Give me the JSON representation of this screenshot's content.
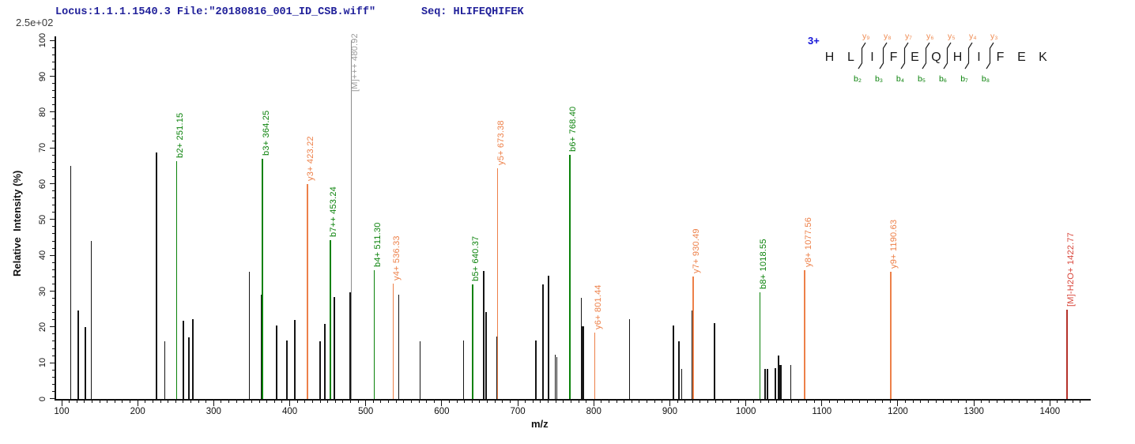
{
  "header": {
    "locus_file": "Locus:1.1.1.1540.3 File:\"20180816_001_ID_CSB.wiff\"",
    "seq_label": "Seq: HLIFEQHIFEK"
  },
  "peptide_map": {
    "charge": "3+",
    "residues": [
      "H",
      "L",
      "I",
      "F",
      "E",
      "Q",
      "H",
      "I",
      "F",
      "E",
      "K"
    ],
    "sites": [
      {
        "after_index": 1,
        "y_label": "y₉",
        "b_label": "b₂"
      },
      {
        "after_index": 2,
        "y_label": "y₈",
        "b_label": "b₃"
      },
      {
        "after_index": 3,
        "y_label": "y₇",
        "b_label": "b₄"
      },
      {
        "after_index": 4,
        "y_label": "y₆",
        "b_label": "b₅"
      },
      {
        "after_index": 5,
        "y_label": "y₅",
        "b_label": "b₆"
      },
      {
        "after_index": 6,
        "y_label": "y₄",
        "b_label": "b₇"
      },
      {
        "after_index": 7,
        "y_label": "y₃",
        "b_label": "b₈"
      }
    ]
  },
  "chart_data": {
    "type": "bar",
    "subtype": "ms2-fragment-spectrum",
    "title": "",
    "xlabel": "m/z",
    "ylabel": "Relative  Intensity (%)",
    "y_top_scale": "2.5e+02",
    "xlim": [
      100,
      1460
    ],
    "ylim": [
      0,
      100
    ],
    "x_major_tick_step": 100,
    "x_minor_tick_step": 10,
    "y_major_tick_step": 10,
    "y_minor_tick_step": 2,
    "x_major_ticks": [
      100,
      200,
      300,
      400,
      500,
      600,
      700,
      800,
      900,
      1000,
      1100,
      1200,
      1300,
      1400
    ],
    "grid": false,
    "colors": {
      "default": "#151515",
      "b": "#0a820a",
      "y": "#ED8049",
      "precursor_line": "#8c8c8c",
      "precursor_label": "#9a9a9a",
      "loss_line": "#b5322a",
      "loss_label": "#d8453a"
    },
    "peaks": [
      {
        "mz": 112,
        "i": 64.9
      },
      {
        "mz": 122,
        "i": 24.5
      },
      {
        "mz": 131.5,
        "i": 20.0
      },
      {
        "mz": 139,
        "i": 44.0
      },
      {
        "mz": 225,
        "i": 68.7
      },
      {
        "mz": 235.5,
        "i": 16.0
      },
      {
        "mz": 251.15,
        "i": 66.2,
        "ion": "b",
        "label": "b2+ 251.15"
      },
      {
        "mz": 260.4,
        "i": 21.7
      },
      {
        "mz": 267.7,
        "i": 17.2
      },
      {
        "mz": 272.9,
        "i": 22.2
      },
      {
        "mz": 347,
        "i": 35.5
      },
      {
        "mz": 363,
        "i": 29.0
      },
      {
        "mz": 364.25,
        "i": 67.0,
        "ion": "b",
        "label": "b3+ 364.25"
      },
      {
        "mz": 382.7,
        "i": 20.4
      },
      {
        "mz": 396.6,
        "i": 16.3
      },
      {
        "mz": 406.7,
        "i": 22.0
      },
      {
        "mz": 423.22,
        "i": 60.0,
        "ion": "y",
        "label": "y3+ 423.22"
      },
      {
        "mz": 440,
        "i": 16.0
      },
      {
        "mz": 446,
        "i": 20.9
      },
      {
        "mz": 453.24,
        "i": 44.3,
        "ion": "b",
        "label": "b7++ 453.24"
      },
      {
        "mz": 458.5,
        "i": 28.3
      },
      {
        "mz": 480,
        "i": 29.6,
        "w": 3
      },
      {
        "mz": 480.92,
        "i": 100,
        "ion": "M",
        "label": "[M]+++ 480.92"
      },
      {
        "mz": 511.3,
        "i": 35.8,
        "ion": "b",
        "label": "b4+ 511.30"
      },
      {
        "mz": 536.33,
        "i": 32.2,
        "ion": "y",
        "label": "y4+ 536.33"
      },
      {
        "mz": 543.5,
        "i": 29.1
      },
      {
        "mz": 571.6,
        "i": 16.1
      },
      {
        "mz": 628.8,
        "i": 16.3
      },
      {
        "mz": 640.37,
        "i": 31.8,
        "ion": "b",
        "label": "b5+ 640.37"
      },
      {
        "mz": 655.4,
        "i": 35.6
      },
      {
        "mz": 658.2,
        "i": 24.1,
        "w": 2.5
      },
      {
        "mz": 672.5,
        "i": 17.4
      },
      {
        "mz": 673.38,
        "i": 64.3,
        "ion": "y",
        "label": "y5+ 673.38"
      },
      {
        "mz": 724,
        "i": 16.3
      },
      {
        "mz": 733.4,
        "i": 31.8
      },
      {
        "mz": 740.6,
        "i": 34.2
      },
      {
        "mz": 749.5,
        "i": 12.3
      },
      {
        "mz": 751.5,
        "i": 11.5
      },
      {
        "mz": 768.4,
        "i": 68.0,
        "ion": "b",
        "label": "b6+ 768.40"
      },
      {
        "mz": 783.7,
        "i": 28.1
      },
      {
        "mz": 785.8,
        "i": 20.1,
        "w": 2.5
      },
      {
        "mz": 801.44,
        "i": 18.5,
        "ion": "y",
        "label": "y6+ 801.44"
      },
      {
        "mz": 847,
        "i": 22.1
      },
      {
        "mz": 905,
        "i": 20.4
      },
      {
        "mz": 912,
        "i": 16.0
      },
      {
        "mz": 915.7,
        "i": 8.2
      },
      {
        "mz": 930,
        "i": 24.6
      },
      {
        "mz": 930.49,
        "i": 34.0,
        "ion": "y",
        "label": "y7+ 930.49"
      },
      {
        "mz": 959,
        "i": 21.1
      },
      {
        "mz": 1018.55,
        "i": 29.7,
        "ion": "b",
        "label": "b8+ 1018.55"
      },
      {
        "mz": 1025.5,
        "i": 8.2
      },
      {
        "mz": 1028.3,
        "i": 8.2
      },
      {
        "mz": 1038.7,
        "i": 8.4
      },
      {
        "mz": 1042.8,
        "i": 12.1
      },
      {
        "mz": 1045.6,
        "i": 9.3,
        "w": 3
      },
      {
        "mz": 1059.1,
        "i": 9.3
      },
      {
        "mz": 1077.56,
        "i": 35.8,
        "ion": "y",
        "label": "y8+ 1077.56"
      },
      {
        "mz": 1190.63,
        "i": 35.3,
        "ion": "y",
        "label": "y9+ 1190.63"
      },
      {
        "mz": 1422.77,
        "i": 24.8,
        "ion": "loss",
        "label": "[M]-H2O+ 1422.77"
      }
    ]
  }
}
